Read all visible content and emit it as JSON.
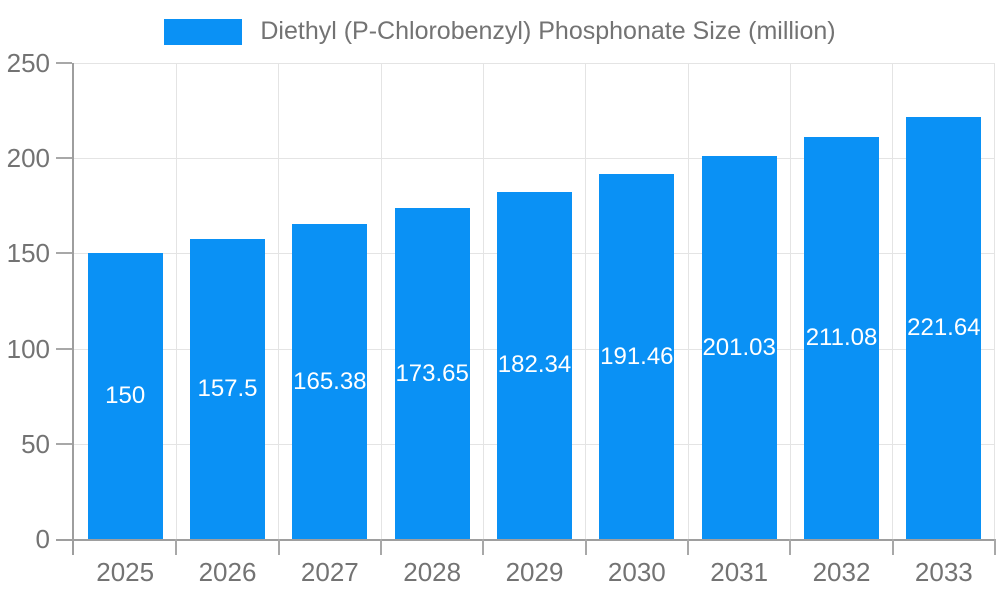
{
  "legend": {
    "label": "Diethyl (P-Chlorobenzyl) Phosphonate Size (million)"
  },
  "chart_data": {
    "type": "bar",
    "title": "Diethyl (P-Chlorobenzyl) Phosphonate Size (million)",
    "categories": [
      "2025",
      "2026",
      "2027",
      "2028",
      "2029",
      "2030",
      "2031",
      "2032",
      "2033"
    ],
    "values": [
      150,
      157.5,
      165.38,
      173.65,
      182.34,
      191.46,
      201.03,
      211.08,
      221.64
    ],
    "value_labels": [
      "150",
      "157.5",
      "165.38",
      "173.65",
      "182.34",
      "191.46",
      "201.03",
      "211.08",
      "221.64"
    ],
    "xlabel": "",
    "ylabel": "",
    "ylim": [
      0,
      250
    ],
    "yticks": [
      0,
      50,
      100,
      150,
      200,
      250
    ],
    "grid": true,
    "legend_position": "top-center",
    "colors": {
      "bar": "#0a91f5",
      "grid": "#e4e4e4",
      "axis": "#9e9e9e",
      "tick_label": "#737373",
      "value_label": "#ffffff",
      "background": "#ffffff"
    }
  }
}
